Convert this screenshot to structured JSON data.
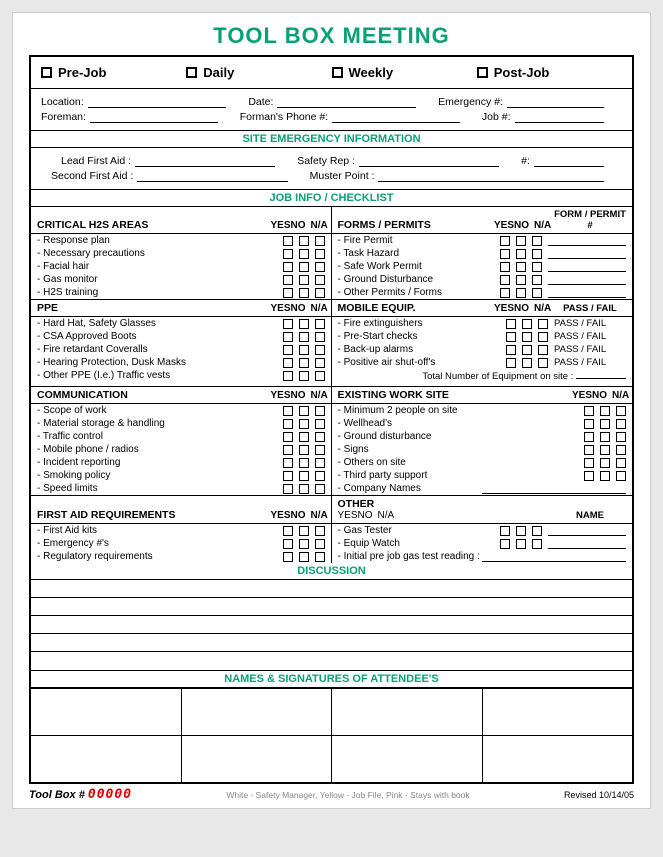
{
  "title": "TOOL BOX MEETING",
  "timing": [
    "Pre-Job",
    "Daily",
    "Weekly",
    "Post-Job"
  ],
  "info1a": [
    {
      "label": "Location:",
      "w": 1
    },
    {
      "label": "Date:",
      "w": 1
    },
    {
      "label": "Emergency #:",
      "w": 0.7
    }
  ],
  "info1b": [
    {
      "label": "Foreman:",
      "w": 1
    },
    {
      "label": "Forman's Phone #:",
      "w": 1
    },
    {
      "label": "Job #:",
      "w": 0.7
    }
  ],
  "sect_emergency": "SITE EMERGENCY INFORMATION",
  "em1": [
    {
      "label": "Lead First Aid :",
      "w": 1
    },
    {
      "label": "Safety Rep :",
      "w": 1
    },
    {
      "label": "#:",
      "w": 0.5
    }
  ],
  "em2": [
    {
      "label": "Second First Aid :",
      "w": 1
    },
    {
      "label": "Muster Point :",
      "w": 1.5
    }
  ],
  "sect_job": "JOB INFO / CHECKLIST",
  "h_yes": "Yes",
  "h_no": "No",
  "h_na": "N/A",
  "blocks": [
    {
      "left": {
        "title": "CRITICAL H2S AREAS",
        "items": [
          "- Response plan",
          "- Necessary precautions",
          "- Facial hair",
          "- Gas monitor",
          "- H2S training"
        ]
      },
      "right": {
        "title": "FORMS / PERMITS",
        "tail_head": "Form / Permit #",
        "tail_type": "line",
        "items": [
          "- Fire Permit",
          "- Task Hazard",
          "- Safe Work Permit",
          "- Ground Disturbance",
          "- Other Permits / Forms"
        ]
      }
    },
    {
      "left": {
        "title": "PPE",
        "items": [
          "- Hard Hat, Safety Glasses",
          "- CSA Approved Boots",
          "- Fire retardant Coveralls",
          "- Hearing Protection, Dusk Masks",
          "- Other PPE (I.e.) Traffic vests"
        ]
      },
      "right": {
        "title": "MOBILE EQUIP.",
        "tail_head": "PASS / FAIL",
        "tail_type": "text",
        "tail_text": "PASS / FAIL",
        "items": [
          "- Fire extinguishers",
          "- Pre-Start checks",
          "- Back-up alarms",
          "- Positive air shut-off's"
        ],
        "sub_note": "Total Number of Equipment on site :"
      }
    },
    {
      "left": {
        "title": "COMMUNICATION",
        "items": [
          "- Scope of work",
          "- Material storage & handling",
          "- Traffic control",
          "- Mobile phone / radios",
          "- Incident reporting",
          "- Smoking policy",
          "- Speed limits"
        ]
      },
      "right": {
        "title": "EXISTING WORK SITE",
        "items": [
          "- Minimum 2 people on site",
          "- Wellhead's",
          "- Ground disturbance",
          "- Signs",
          "- Others on site",
          "- Third party support",
          "- Company Names"
        ],
        "last_line": true
      }
    },
    {
      "left": {
        "title": "FIRST AID REQUIREMENTS",
        "items": [
          "- First Aid kits",
          "- Emergency #'s",
          "- Regulatory requirements"
        ]
      },
      "right": {
        "title": "OTHER",
        "tail_head": "Name",
        "tail_type": "line",
        "yna_inline": true,
        "items": [
          "- Gas Tester",
          "- Equip Watch",
          "- Initial pre job gas test reading :"
        ],
        "last_item_line_only": true
      }
    }
  ],
  "sect_discussion": "DISCUSSION",
  "sect_sign": "NAMES & SIGNATURES OF ATTENDEE'S",
  "footer_label": "Tool Box #",
  "footer_num": "00000",
  "footer_mid": "White - Safety Manager, Yellow - Job File, Pink - Stays with book",
  "footer_rev": "Revised 10/14/05"
}
